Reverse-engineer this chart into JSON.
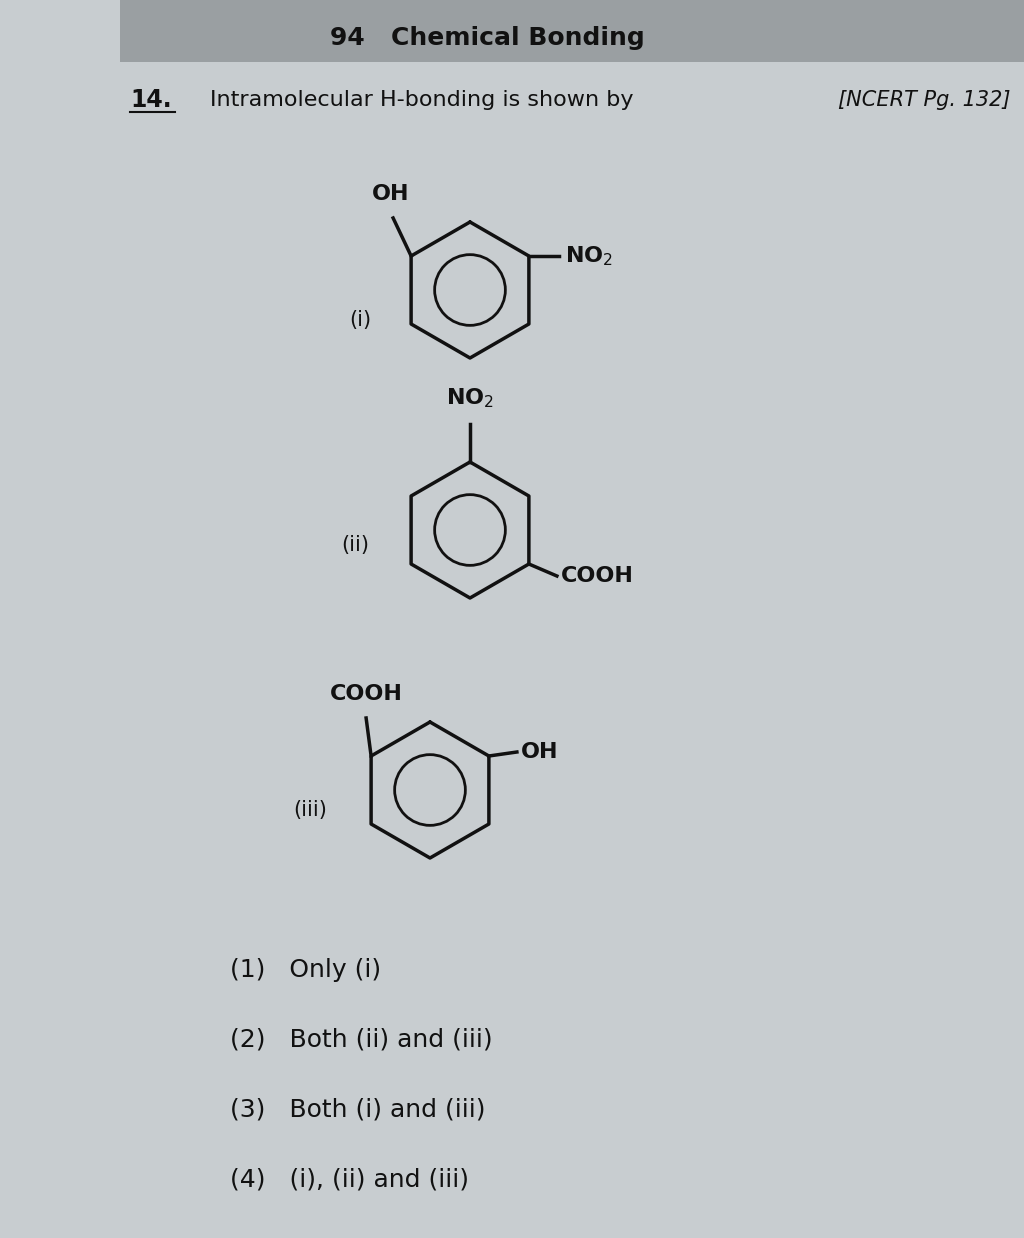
{
  "bg_color": "#c8cdd0",
  "header_bg": "#9a9fa2",
  "header_text": "94   Chemical Bonding",
  "question_num": "14.",
  "question_text": "Intramolecular H-bonding is shown by",
  "ncert_ref": "[NCERT Pg. 132]",
  "options": [
    "(1)   Only (i)",
    "(2)   Both (ii) and (iii)",
    "(3)   Both (i) and (iii)",
    "(4)   (i), (ii) and (iii)"
  ],
  "text_color": "#111111",
  "ring_color": "#111111",
  "font_size_header": 18,
  "font_size_question": 16,
  "font_size_options": 17,
  "font_size_labels": 14,
  "font_size_chem": 14
}
